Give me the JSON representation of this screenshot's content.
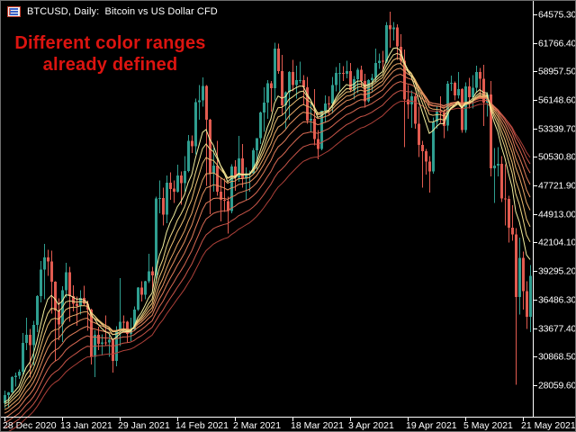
{
  "window": {
    "title": "BTCUSD, Daily:  Bitcoin vs US Dollar CFD",
    "title_icon": "chart-window-icon"
  },
  "annotation": {
    "line1": "Different color ranges",
    "line2": "already defined",
    "color": "#dc1410"
  },
  "axis": {
    "line_color": "#ffffff",
    "label_color": "#ffffff"
  },
  "chart_data": {
    "type": "candlestick",
    "symbol": "BTCUSD",
    "timeframe": "Daily",
    "ylim": [
      24950,
      65900
    ],
    "grid": "off",
    "legend": "none",
    "y_tick_labels": [
      "64575.30",
      "61766.40",
      "58957.50",
      "56148.60",
      "53339.70",
      "50530.80",
      "47721.90",
      "44913.00",
      "42104.10",
      "39295.20",
      "36486.30",
      "33677.40",
      "30868.50",
      "28059.60"
    ],
    "x_tick_labels": [
      "28 Dec 2020",
      "13 Jan 2021",
      "29 Jan 2021",
      "14 Feb 2021",
      "2 Mar 2021",
      "18 Mar 2021",
      "3 Apr 2021",
      "19 Apr 2021",
      "5 May 2021",
      "21 May 2021"
    ],
    "x_tick_indices": [
      0,
      16,
      32,
      48,
      64,
      80,
      96,
      112,
      128,
      144
    ],
    "up_color": "#2f9e90",
    "down_color": "#e25b50",
    "candles_ohlc": [
      [
        26300,
        27500,
        25800,
        27080
      ],
      [
        27080,
        27400,
        25900,
        27360
      ],
      [
        27360,
        28960,
        27300,
        28840
      ],
      [
        28840,
        29290,
        27900,
        28990
      ],
      [
        28990,
        29600,
        28650,
        29370
      ],
      [
        29370,
        33200,
        29100,
        32200
      ],
      [
        32200,
        34700,
        31500,
        33000
      ],
      [
        33000,
        33600,
        28800,
        32010
      ],
      [
        32010,
        34400,
        30000,
        33990
      ],
      [
        33990,
        36900,
        33300,
        36820
      ],
      [
        36820,
        40300,
        36200,
        39450
      ],
      [
        39450,
        41950,
        36500,
        40640
      ],
      [
        40640,
        41400,
        38800,
        40250
      ],
      [
        40250,
        41300,
        35100,
        38240
      ],
      [
        38240,
        38300,
        30400,
        35410
      ],
      [
        35410,
        36600,
        32500,
        34050
      ],
      [
        34050,
        37800,
        32300,
        37390
      ],
      [
        37390,
        40100,
        36700,
        39160
      ],
      [
        39160,
        39700,
        34300,
        36820
      ],
      [
        36820,
        37900,
        35300,
        36070
      ],
      [
        36070,
        36800,
        33900,
        35830
      ],
      [
        35830,
        37400,
        35000,
        36630
      ],
      [
        36630,
        37850,
        35900,
        36070
      ],
      [
        36070,
        36400,
        33400,
        35500
      ],
      [
        35500,
        35600,
        30100,
        30850
      ],
      [
        30850,
        33450,
        28850,
        33000
      ],
      [
        33000,
        33800,
        31500,
        32110
      ],
      [
        32110,
        33070,
        31000,
        32280
      ],
      [
        32280,
        34900,
        31950,
        32260
      ],
      [
        32260,
        32950,
        30850,
        32520
      ],
      [
        32520,
        32600,
        29300,
        30430
      ],
      [
        30430,
        33850,
        29900,
        33440
      ],
      [
        33440,
        38600,
        31900,
        34320
      ],
      [
        34320,
        34900,
        33330,
        34300
      ],
      [
        34300,
        34400,
        32200,
        33110
      ],
      [
        33110,
        34700,
        32400,
        33540
      ],
      [
        33540,
        35800,
        33400,
        35510
      ],
      [
        35510,
        37700,
        35350,
        37680
      ],
      [
        37680,
        38300,
        36300,
        36940
      ],
      [
        36940,
        38350,
        36500,
        38290
      ],
      [
        38290,
        41000,
        38100,
        39250
      ],
      [
        39250,
        39700,
        37400,
        38870
      ],
      [
        38870,
        46600,
        38100,
        46430
      ],
      [
        46430,
        48200,
        45000,
        46500
      ],
      [
        46500,
        47500,
        43800,
        44840
      ],
      [
        44840,
        48700,
        44000,
        47990
      ],
      [
        47990,
        49000,
        46300,
        47400
      ],
      [
        47400,
        48200,
        46000,
        47110
      ],
      [
        47110,
        49750,
        47000,
        48720
      ],
      [
        48720,
        49100,
        45800,
        47950
      ],
      [
        47950,
        50600,
        47100,
        49160
      ],
      [
        49160,
        52700,
        49000,
        52120
      ],
      [
        52120,
        52650,
        50900,
        51580
      ],
      [
        51580,
        56300,
        50800,
        55920
      ],
      [
        55920,
        57600,
        54200,
        56100
      ],
      [
        56100,
        58370,
        55500,
        57530
      ],
      [
        57530,
        57600,
        47700,
        54200
      ],
      [
        54200,
        54300,
        44900,
        48900
      ],
      [
        48900,
        51400,
        47100,
        49700
      ],
      [
        49700,
        52100,
        46700,
        47100
      ],
      [
        47100,
        48500,
        44200,
        46300
      ],
      [
        46300,
        48400,
        45100,
        46200
      ],
      [
        46200,
        46600,
        43000,
        45200
      ],
      [
        45200,
        49800,
        45000,
        49600
      ],
      [
        49600,
        50200,
        47200,
        48500
      ],
      [
        48500,
        52600,
        48100,
        50400
      ],
      [
        50400,
        51800,
        47500,
        48400
      ],
      [
        48400,
        49500,
        46300,
        48900
      ],
      [
        48900,
        49200,
        47100,
        48900
      ],
      [
        48900,
        51400,
        48900,
        51200
      ],
      [
        51200,
        52400,
        49300,
        52400
      ],
      [
        52400,
        55000,
        51800,
        54900
      ],
      [
        54900,
        57400,
        53000,
        55900
      ],
      [
        55900,
        58100,
        54300,
        57800
      ],
      [
        57800,
        58000,
        55000,
        57300
      ],
      [
        57300,
        61780,
        56100,
        61200
      ],
      [
        61200,
        61700,
        58700,
        59000
      ],
      [
        59000,
        60600,
        54600,
        55600
      ],
      [
        55600,
        57000,
        53300,
        56900
      ],
      [
        56900,
        59000,
        54200,
        58900
      ],
      [
        58900,
        60100,
        57000,
        57600
      ],
      [
        57600,
        59500,
        56300,
        58100
      ],
      [
        58100,
        59900,
        57800,
        58100
      ],
      [
        58100,
        58600,
        55600,
        57400
      ],
      [
        57400,
        58400,
        53800,
        54100
      ],
      [
        54100,
        55800,
        53000,
        54300
      ],
      [
        54300,
        57200,
        51700,
        52300
      ],
      [
        52300,
        53200,
        50300,
        51300
      ],
      [
        51300,
        55100,
        51200,
        55100
      ],
      [
        55100,
        56600,
        53900,
        55800
      ],
      [
        55800,
        56500,
        54700,
        55780
      ],
      [
        55780,
        58400,
        54800,
        57600
      ],
      [
        57600,
        59400,
        57000,
        58800
      ],
      [
        58800,
        59800,
        56900,
        58800
      ],
      [
        58800,
        59470,
        58000,
        58730
      ],
      [
        58730,
        60000,
        58300,
        59000
      ],
      [
        59000,
        59800,
        56900,
        57100
      ],
      [
        57100,
        58500,
        56200,
        58200
      ],
      [
        58200,
        59300,
        56800,
        59100
      ],
      [
        59100,
        59500,
        57400,
        58000
      ],
      [
        58000,
        58700,
        55400,
        56000
      ],
      [
        56000,
        58200,
        55900,
        58100
      ],
      [
        58100,
        58700,
        57000,
        58300
      ],
      [
        58300,
        61200,
        57900,
        59800
      ],
      [
        59800,
        60700,
        59200,
        60000
      ],
      [
        60000,
        61000,
        59000,
        59900
      ],
      [
        59900,
        63800,
        59800,
        63500
      ],
      [
        63500,
        64850,
        61300,
        63100
      ],
      [
        63100,
        63800,
        62000,
        63300
      ],
      [
        63300,
        63600,
        60100,
        61400
      ],
      [
        61400,
        62600,
        59600,
        60000
      ],
      [
        60000,
        61100,
        51500,
        56200
      ],
      [
        56200,
        57600,
        54300,
        55700
      ],
      [
        55700,
        57100,
        53400,
        56500
      ],
      [
        56500,
        56800,
        53300,
        53800
      ],
      [
        53800,
        55500,
        50500,
        51700
      ],
      [
        51700,
        52100,
        47500,
        51100
      ],
      [
        51100,
        51300,
        48800,
        50100
      ],
      [
        50100,
        50600,
        47000,
        49100
      ],
      [
        49100,
        54400,
        48900,
        54000
      ],
      [
        54000,
        55500,
        53300,
        55000
      ],
      [
        55000,
        56500,
        53900,
        54900
      ],
      [
        54900,
        55200,
        52400,
        53600
      ],
      [
        53600,
        58000,
        53100,
        57750
      ],
      [
        57750,
        58550,
        57050,
        57830
      ],
      [
        57830,
        57950,
        56100,
        56600
      ],
      [
        56600,
        58900,
        56300,
        57200
      ],
      [
        57200,
        57300,
        52900,
        53200
      ],
      [
        53200,
        57900,
        52900,
        57500
      ],
      [
        57500,
        58300,
        55300,
        56400
      ],
      [
        56400,
        58600,
        55300,
        57350
      ],
      [
        57350,
        59500,
        56900,
        58900
      ],
      [
        58900,
        59300,
        56300,
        58250
      ],
      [
        58250,
        59600,
        53600,
        55900
      ],
      [
        55900,
        56900,
        54500,
        56700
      ],
      [
        56700,
        58000,
        48600,
        49400
      ],
      [
        49400,
        51400,
        46000,
        49700
      ],
      [
        49700,
        51500,
        48600,
        49850
      ],
      [
        49850,
        50600,
        46100,
        46450
      ],
      [
        46450,
        49800,
        43800,
        46400
      ],
      [
        46400,
        46700,
        42100,
        43580
      ],
      [
        43580,
        45800,
        42300,
        42900
      ],
      [
        42900,
        43500,
        28100,
        36750
      ],
      [
        36750,
        42600,
        35000,
        40600
      ],
      [
        40600,
        41200,
        35500,
        37300
      ],
      [
        37300,
        38300,
        33600,
        34800
      ],
      [
        34800,
        39900,
        33300,
        38800
      ]
    ],
    "ema_ribbon": {
      "periods": [
        8,
        11,
        14,
        18,
        22,
        27,
        33,
        40,
        48
      ],
      "colors": [
        "#f4f0a0",
        "#f0da88",
        "#edc074",
        "#eaa967",
        "#e79260",
        "#e37e5b",
        "#d96953",
        "#c95549",
        "#ad4039"
      ],
      "warmup_closes": [
        17900,
        18250,
        18700,
        19150,
        18900,
        19300,
        19500,
        19150,
        19400,
        19700,
        20100,
        20800,
        21400,
        22100,
        22800,
        23200,
        23600,
        23300,
        22900,
        23300,
        23900,
        24400,
        25100,
        25900,
        26400,
        26200,
        25100,
        24300,
        23800,
        24200,
        24900,
        25800,
        26400,
        26900,
        27200,
        26800,
        26300,
        26100,
        26200,
        26300
      ]
    }
  }
}
